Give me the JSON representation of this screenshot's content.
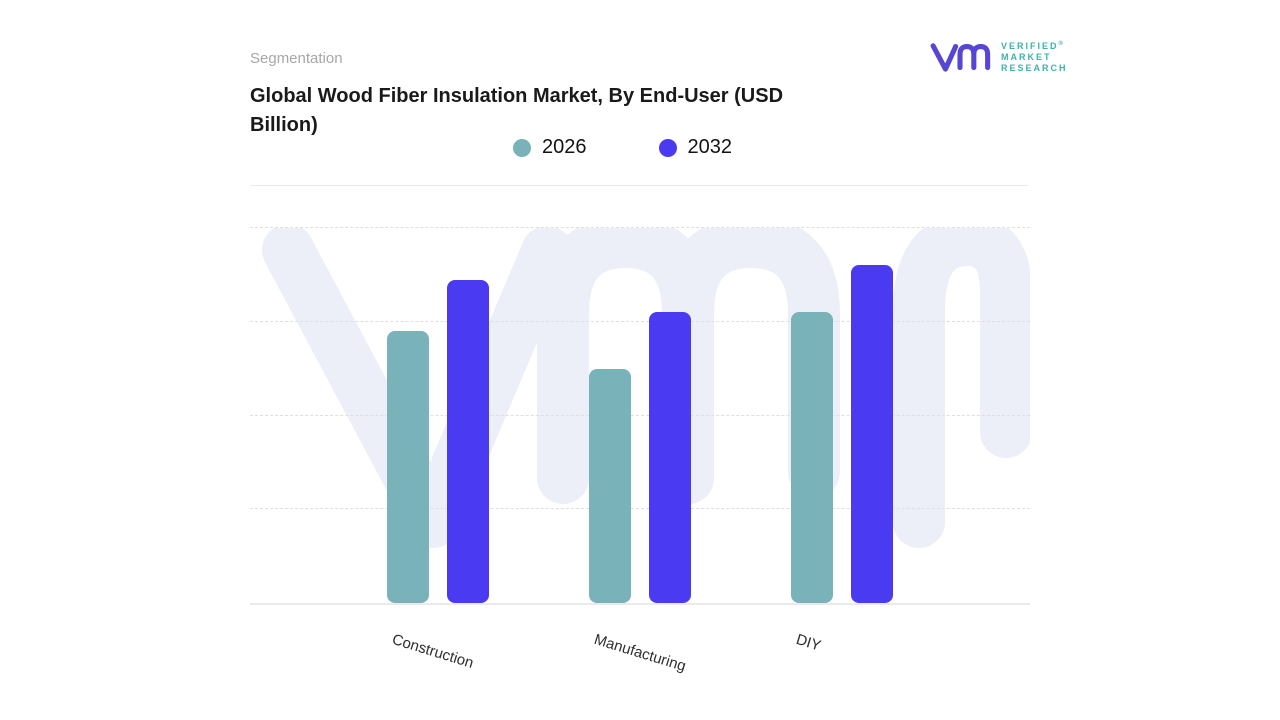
{
  "page": {
    "section_label": "Segmentation",
    "title": "Global Wood Fiber Insulation Market, By End-User (USD Billion)"
  },
  "logo": {
    "lines": [
      "VERIFIED",
      "MARKET",
      "RESEARCH"
    ],
    "registered": "®",
    "mark_color": "#5546d5",
    "text_color": "#3fb2ab"
  },
  "watermark": {
    "color": "#eceef8"
  },
  "legend": [
    {
      "label": "2026",
      "color": "#7ab2b9"
    },
    {
      "label": "2032",
      "color": "#4a3af2"
    }
  ],
  "chart_data": {
    "type": "bar",
    "title": "Global Wood Fiber Insulation Market, By End-User (USD Billion)",
    "categories": [
      "Construction",
      "Manufacturing",
      "DIY"
    ],
    "series": [
      {
        "name": "2026",
        "color": "#7ab2b9",
        "values": [
          2.9,
          2.5,
          3.1
        ]
      },
      {
        "name": "2032",
        "color": "#4a3af2",
        "values": [
          3.45,
          3.1,
          3.6
        ]
      }
    ],
    "xlabel": "",
    "ylabel": "USD Billion",
    "ylim": [
      0,
      4
    ],
    "y_axis_tick_labels_visible": false,
    "values_estimated_from_gridlines": true,
    "grid": "horizontal-dashed",
    "legend_position": "top-center",
    "x_label_rotation_deg": 17
  }
}
